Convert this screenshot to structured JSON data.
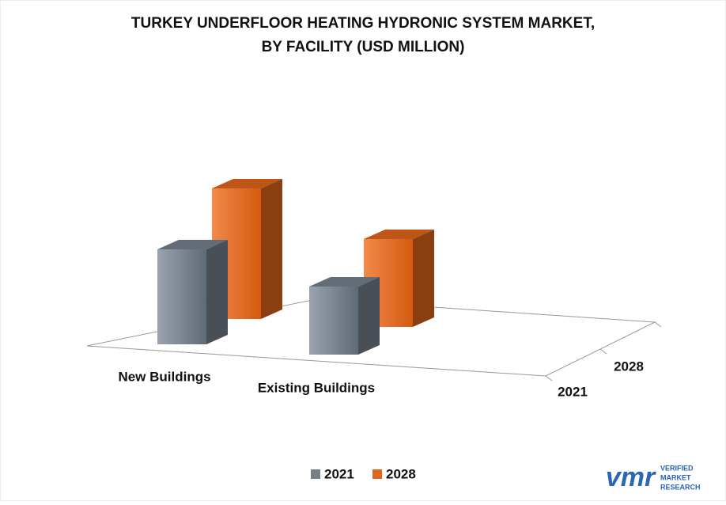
{
  "chart_data": {
    "type": "bar3d",
    "title": "TURKEY UNDERFLOOR HEATING HYDRONIC SYSTEM MARKET,",
    "subtitle": "BY FACILITY (USD MILLION)",
    "categories": [
      "New Buildings",
      "Existing Buildings"
    ],
    "series": [
      {
        "name": "2021",
        "color": "#75808d",
        "values": [
          120,
          86
        ]
      },
      {
        "name": "2028",
        "color": "#e0651c",
        "values": [
          165,
          111
        ]
      }
    ]
  },
  "logo": {
    "mark": "vmr",
    "line1": "VERIFIED",
    "line2": "MARKET",
    "line3": "RESEARCH"
  }
}
